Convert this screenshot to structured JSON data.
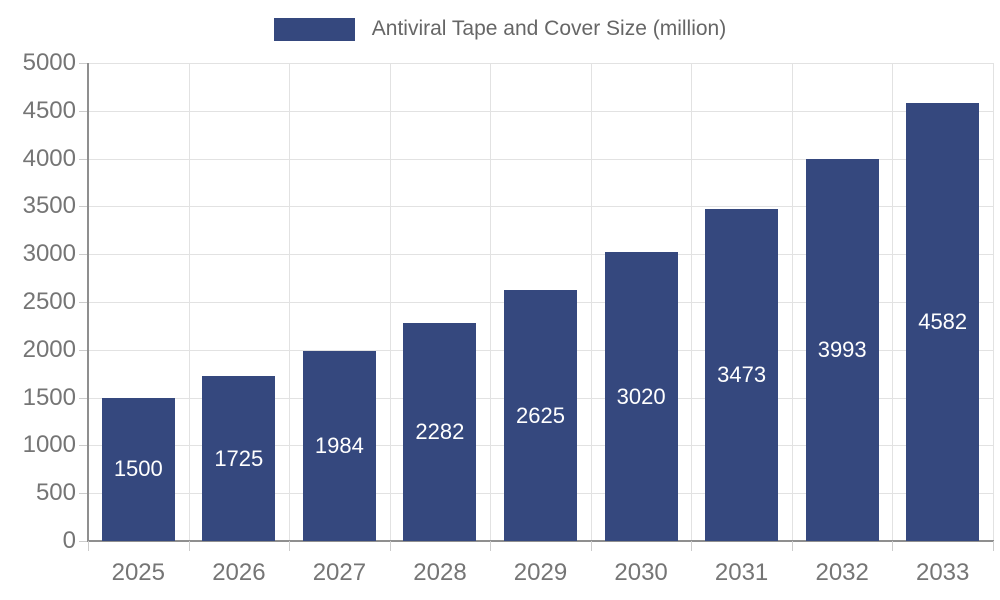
{
  "legend": {
    "label": "Antiviral Tape and Cover Size (million)"
  },
  "colors": {
    "bar": "#35487e",
    "grid": "#e2e2e2",
    "axis": "#8f8f8f",
    "tick": "#cccccc",
    "axis_label": "#757575",
    "value_label": "#ffffff",
    "legend_text": "#666666",
    "background": "#ffffff"
  },
  "chart_data": {
    "type": "bar",
    "title": "Antiviral Tape and Cover Size (million)",
    "categories": [
      "2025",
      "2026",
      "2027",
      "2028",
      "2029",
      "2030",
      "2031",
      "2032",
      "2033"
    ],
    "values": [
      1500,
      1725,
      1984,
      2282,
      2625,
      3020,
      3473,
      3993,
      4582
    ],
    "xlabel": "",
    "ylabel": "",
    "ylim": [
      0,
      5000
    ],
    "ytick_step": 500,
    "ytick_labels": [
      "0",
      "500",
      "1000",
      "1500",
      "2000",
      "2500",
      "3000",
      "3500",
      "4000",
      "4500",
      "5000"
    ],
    "grid": true,
    "legend_position": "top-center",
    "value_label_position": "inside-center"
  }
}
